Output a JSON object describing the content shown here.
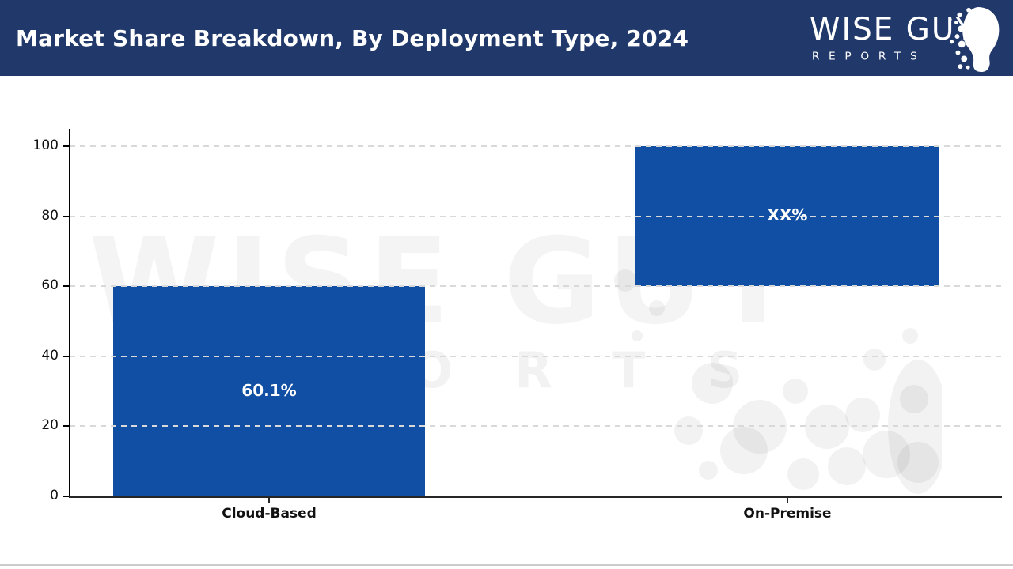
{
  "header": {
    "title": "Market Share Breakdown, By Deployment Type, 2024",
    "logo": {
      "line1": "WISE GUY",
      "line2": "REPORTS"
    }
  },
  "watermark": {
    "line1": "WISE GUY",
    "line2": "REPORTS"
  },
  "chart_data": {
    "type": "bar",
    "subtype": "floating-stacked-percentage",
    "title": "Market Share Breakdown, By Deployment Type, 2024",
    "categories": [
      "Cloud-Based",
      "On-Premise"
    ],
    "bars": [
      {
        "category": "Cloud-Based",
        "label": "60.1%",
        "span": [
          0,
          60.1
        ],
        "value": 60.1
      },
      {
        "category": "On-Premise",
        "label": "XX%",
        "span": [
          60.1,
          100
        ],
        "value": null,
        "value_masked": "XX"
      }
    ],
    "xlabel": "",
    "ylabel": "",
    "yticks": [
      0,
      20,
      40,
      60,
      80,
      100
    ],
    "ylim": [
      0,
      105
    ],
    "grid": {
      "axis": "y",
      "style": "dashed",
      "color": "#d9d9d9",
      "over_bars": true
    },
    "legend": null,
    "bar_color": "#104fa3",
    "bar_label_color": "#ffffff",
    "colors": {
      "header_bg": "#21386b",
      "axis": "#262626",
      "tick_label": "#111111"
    }
  }
}
